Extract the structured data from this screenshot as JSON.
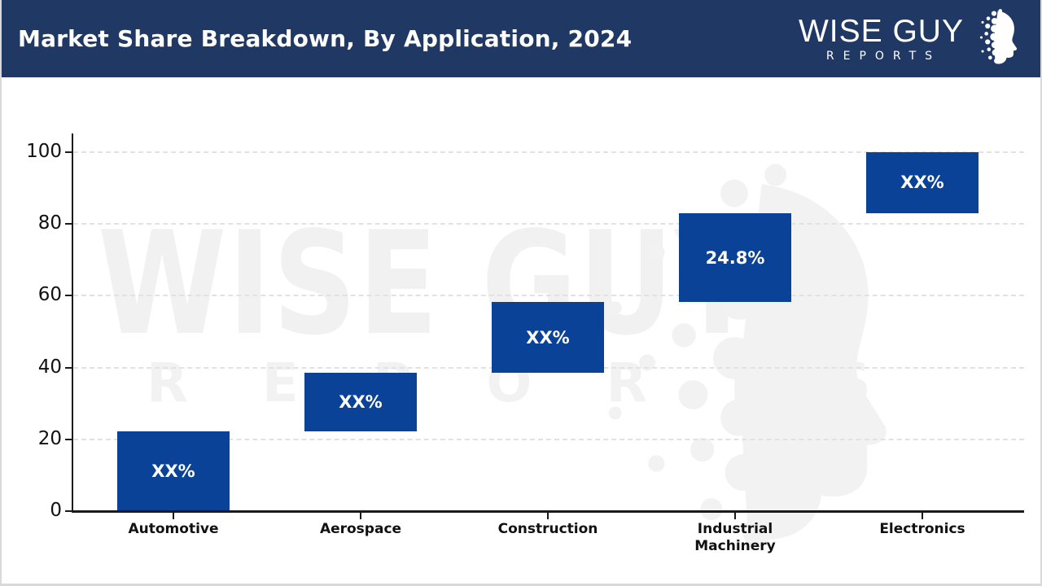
{
  "header": {
    "title": "Market Share Breakdown, By Application, 2024",
    "logo": {
      "line1": "WISE GUY",
      "line2": "REPORTS"
    }
  },
  "watermark": {
    "line1": "WISE GUY",
    "line2": "R E P O R T S"
  },
  "colors": {
    "header_bg": "#1f3864",
    "bar": "#0a4298",
    "bar_label": "#ffffff",
    "axis": "#1a1a1a",
    "grid": "#e2e2e2",
    "watermark": "#f1f1f1"
  },
  "chart_data": {
    "type": "bar",
    "subtype": "waterfall",
    "title": "Market Share Breakdown, By Application, 2024",
    "categories": [
      "Automotive",
      "Aerospace",
      "Construction",
      "Industrial Machinery",
      "Electronics"
    ],
    "bars": [
      {
        "category": "Automotive",
        "start": 0,
        "end": 22.3,
        "value": 22.3,
        "label": "XX%"
      },
      {
        "category": "Aerospace",
        "start": 22.3,
        "end": 38.6,
        "value": 16.3,
        "label": "XX%"
      },
      {
        "category": "Construction",
        "start": 38.6,
        "end": 58.2,
        "value": 19.6,
        "label": "XX%"
      },
      {
        "category": "Industrial Machinery",
        "start": 58.2,
        "end": 83.0,
        "value": 24.8,
        "label": "24.8%"
      },
      {
        "category": "Electronics",
        "start": 83.0,
        "end": 100.0,
        "value": 17.0,
        "label": "XX%"
      }
    ],
    "yticks": [
      0,
      20,
      40,
      60,
      80,
      100
    ],
    "ylim": [
      0,
      105
    ],
    "xlabel": "",
    "ylabel": "",
    "legend": "none",
    "grid": "horizontal-dashed"
  }
}
